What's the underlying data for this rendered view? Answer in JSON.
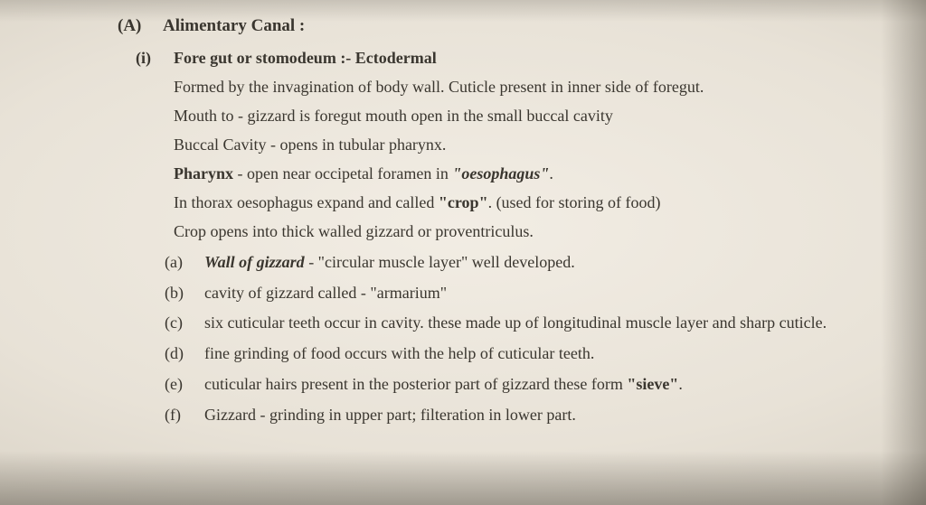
{
  "section": {
    "marker": "(A)",
    "title": "Alimentary Canal :"
  },
  "sub_i": {
    "marker": "(i)",
    "title": "Fore gut or stomodeum :- Ectodermal"
  },
  "paragraphs": {
    "p1": "Formed by the invagination of body wall. Cuticle present in inner side of foregut.",
    "p2": "Mouth to - gizzard is foregut mouth open in the small buccal cavity",
    "p3": "Buccal Cavity - opens in tubular pharynx.",
    "p4_lead": "Pharynx",
    "p4_rest": " - open near occipetal foramen in ",
    "p4_quoted": "\"oesophagus\"",
    "p4_tail": ".",
    "p5_a": "In thorax oesophagus expand and called ",
    "p5_quoted": "\"crop\"",
    "p5_b": ". (used for storing of food)",
    "p6": "Crop opens into  thick walled gizzard or proventriculus."
  },
  "items": {
    "a": {
      "marker": "(a)",
      "lead": "Wall of gizzard",
      "rest": " - \"circular muscle layer\" well developed."
    },
    "b": {
      "marker": "(b)",
      "text": "cavity of gizzard called - \"armarium\""
    },
    "c": {
      "marker": "(c)",
      "text": "six cuticular teeth occur in cavity. these made up of longitudinal muscle layer and sharp cuticle."
    },
    "d": {
      "marker": "(d)",
      "text": "fine grinding of food occurs with the help of cuticular teeth."
    },
    "e": {
      "marker": "(e)",
      "text_a": "cuticular hairs present in the posterior part of gizzard these form ",
      "quoted": "\"sieve\"",
      "text_b": "."
    },
    "f": {
      "marker": "(f)",
      "text": "Gizzard - grinding in upper part; filteration in lower part."
    }
  }
}
